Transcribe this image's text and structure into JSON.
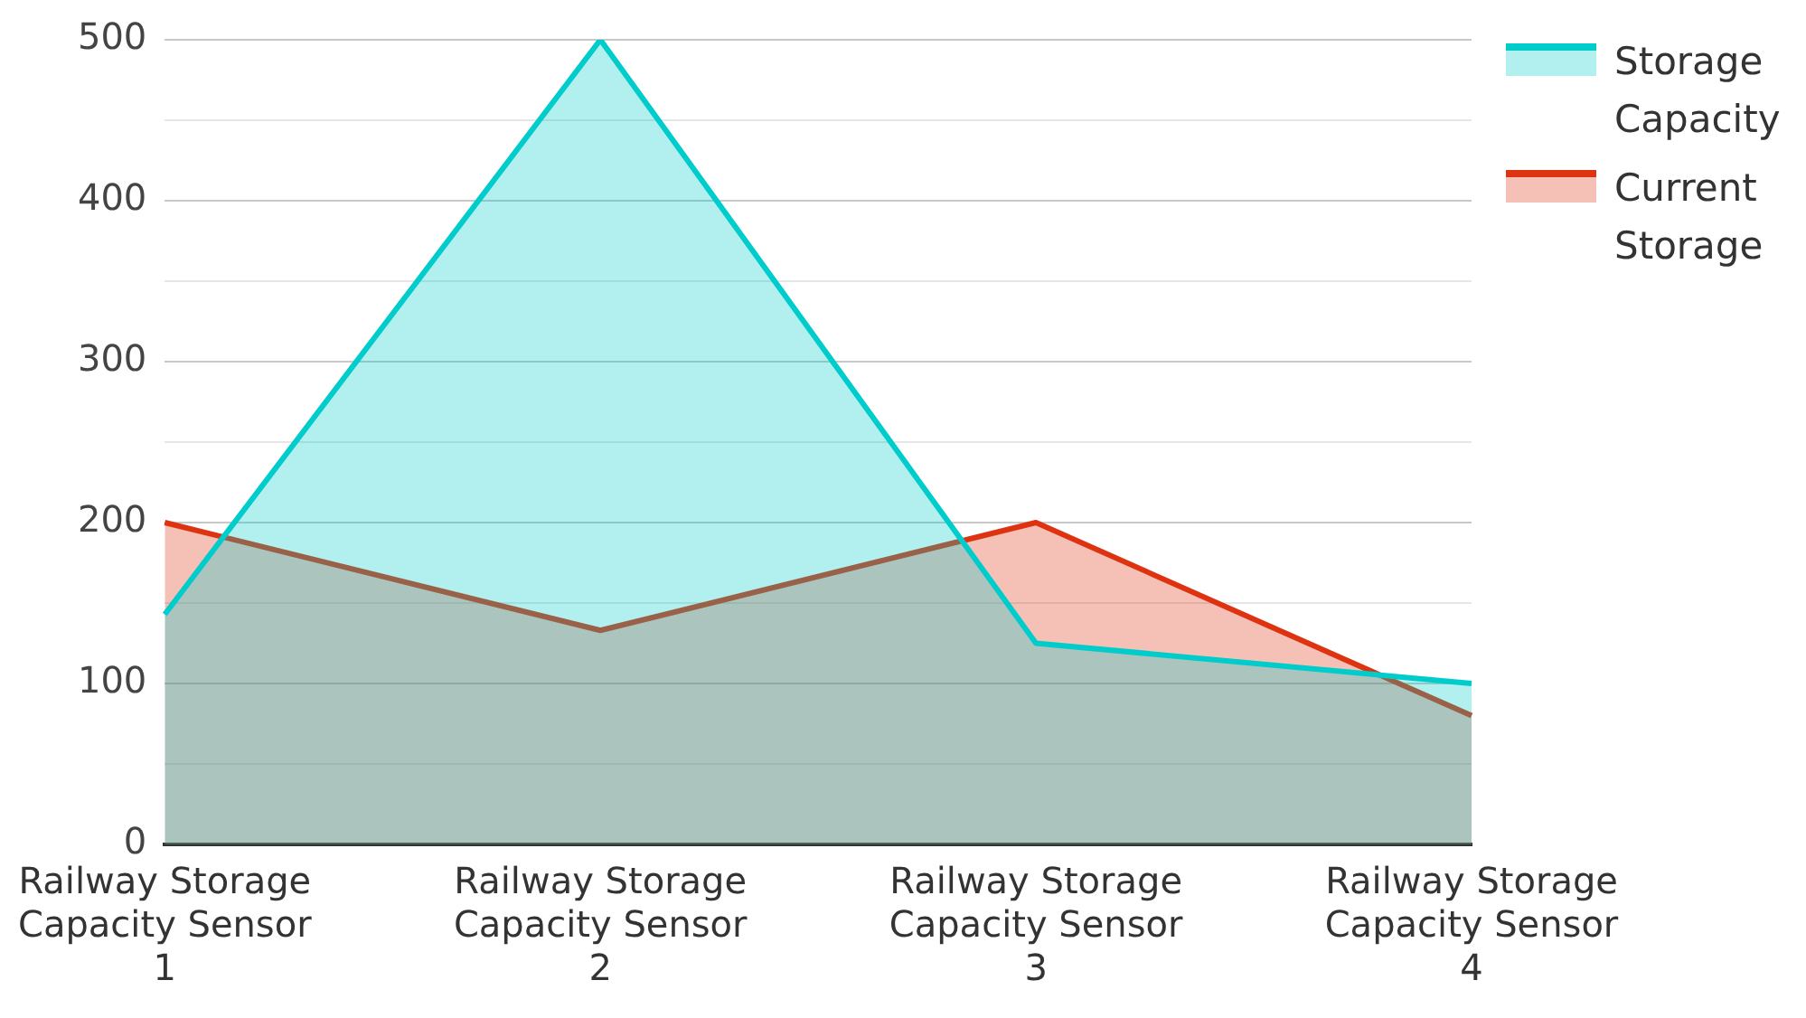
{
  "chart_data": {
    "type": "area",
    "categories": [
      "Railway Storage Capacity Sensor 1",
      "Railway Storage Capacity Sensor 2",
      "Railway Storage Capacity Sensor 3",
      "Railway Storage Capacity Sensor 4"
    ],
    "series": [
      {
        "name": "Storage Capacity",
        "color": "#00cccc",
        "values": [
          143,
          500,
          125,
          100
        ]
      },
      {
        "name": "Current Storage",
        "color": "#dd3311",
        "values": [
          200,
          133,
          200,
          80
        ]
      }
    ],
    "ylim": [
      0,
      500
    ],
    "yticks": [
      0,
      {
        "value": 50,
        "label": null
      },
      100,
      {
        "value": 150,
        "label": null
      },
      200,
      {
        "value": 250,
        "label": null
      },
      300,
      {
        "value": 350,
        "label": null
      },
      400,
      {
        "value": 450,
        "label": null
      },
      500
    ],
    "grid": "y",
    "legend": "top right",
    "marker": "none"
  }
}
